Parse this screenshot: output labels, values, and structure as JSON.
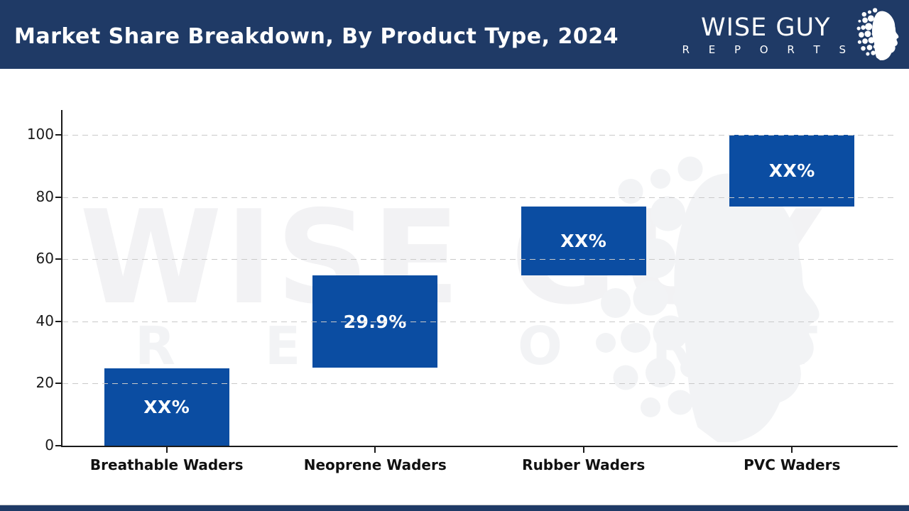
{
  "header": {
    "title": "Market Share Breakdown, By Product Type, 2024",
    "logo": {
      "line1": "WISE GUY",
      "line2": "R E P O R T S"
    }
  },
  "watermark": {
    "line1": "WISE GUY",
    "line2": "R E P O R T S"
  },
  "colors": {
    "header_bg": "#1F3A66",
    "bar_fill": "#0B4DA2",
    "axis": "#1A1A1A",
    "grid": "#C9C9C9",
    "watermark": "#F2F2F4",
    "value_label": "#FFFFFF"
  },
  "chart_data": {
    "type": "bar",
    "subtype": "floating-waterfall",
    "title": "Market Share Breakdown, By Product Type, 2024",
    "categories": [
      "Breathable Waders",
      "Neoprene Waders",
      "Rubber Waders",
      "PVC Waders"
    ],
    "bars": [
      {
        "category": "Breathable Waders",
        "start": 0,
        "end": 25.0,
        "label": "XX%"
      },
      {
        "category": "Neoprene Waders",
        "start": 25.0,
        "end": 54.9,
        "label": "29.9%"
      },
      {
        "category": "Rubber Waders",
        "start": 54.9,
        "end": 76.9,
        "label": "XX%"
      },
      {
        "category": "PVC Waders",
        "start": 76.9,
        "end": 100.0,
        "label": "XX%"
      }
    ],
    "yticks": [
      0,
      20,
      40,
      60,
      80,
      100
    ],
    "ylim": [
      0,
      108
    ],
    "xlabel": "",
    "ylabel": "",
    "grid": "horizontal-dashed",
    "grid_above_bars": true,
    "legend": "none"
  }
}
